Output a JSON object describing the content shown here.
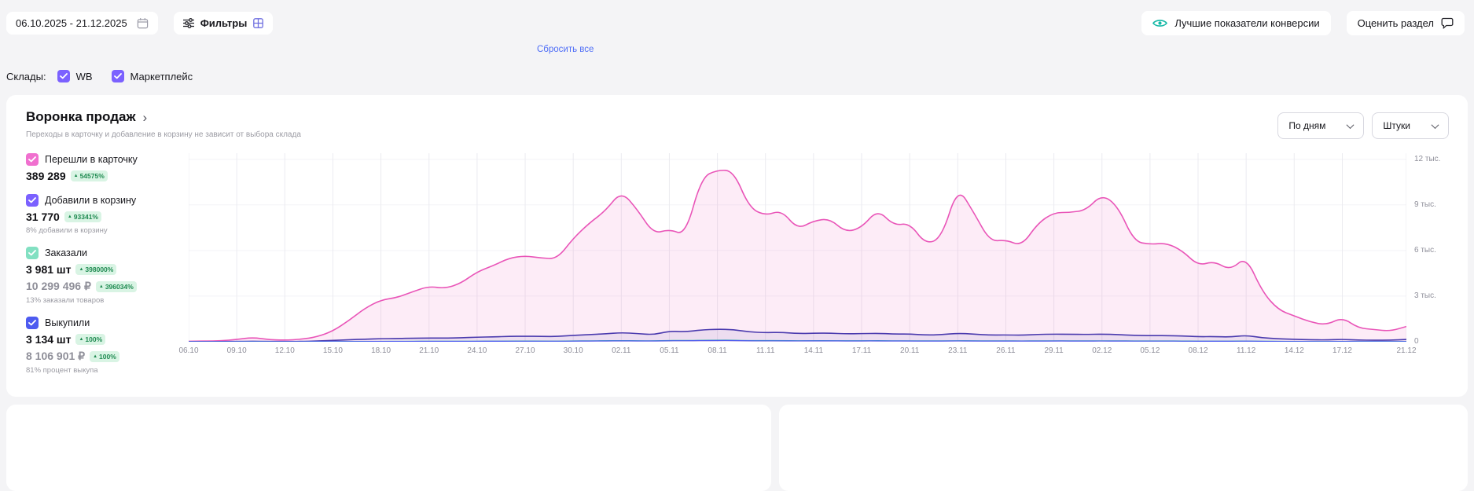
{
  "topbar": {
    "date_range": "06.10.2025 - 21.12.2025",
    "filters_label": "Фильтры",
    "reset_all": "Сбросить все",
    "best_conversion": "Лучшие показатели конверсии",
    "rate_section": "Оценить раздел"
  },
  "warehouses": {
    "label": "Склады:",
    "options": [
      {
        "label": "WB",
        "checked": true
      },
      {
        "label": "Маркетплейс",
        "checked": true
      }
    ]
  },
  "funnel": {
    "title": "Воронка продаж",
    "subtitle": "Переходы в карточку и добавление в корзину не зависит от выбора склада",
    "group_by": "По дням",
    "units": "Штуки",
    "metrics": [
      {
        "label": "Перешли в карточку",
        "value": "389 289",
        "badge": "54575%",
        "color": "#f070cf"
      },
      {
        "label": "Добавили в корзину",
        "value": "31 770",
        "badge": "93341%",
        "note": "8% добавили в корзину",
        "color": "#7b61ff"
      },
      {
        "label": "Заказали",
        "value": "3 981 шт",
        "badge": "398000%",
        "value2": "10 299 496 ₽",
        "badge2": "396034%",
        "note": "13% заказали товаров",
        "color": "#82e0c2"
      },
      {
        "label": "Выкупили",
        "value": "3 134 шт",
        "badge": "100%",
        "value2": "8 106 901 ₽",
        "badge2": "100%",
        "note": "81% процент выкупа",
        "color": "#4d5bf0"
      }
    ]
  },
  "colors": {
    "accent_purple": "#7b61ff",
    "link_blue": "#4f6ef7",
    "badge_green_bg": "#d9f4e4",
    "badge_green_text": "#1e8a50",
    "pink_line": "#e955b8",
    "dark_purple_line": "#4a3aae",
    "teal_icon": "#14b8a6"
  },
  "chart_data": {
    "type": "area",
    "title": "Воронка продаж",
    "legend_position": "left",
    "grid": true,
    "ylim": [
      0,
      12400
    ],
    "y_ticks": [
      0,
      3000,
      6000,
      9000,
      12000
    ],
    "y_tick_labels": [
      "0",
      "3 тыс.",
      "6 тыс.",
      "9 тыс.",
      "12 тыс."
    ],
    "x_labels": [
      "06.10",
      "09.10",
      "12.10",
      "15.10",
      "18.10",
      "21.10",
      "24.10",
      "27.10",
      "30.10",
      "02.11",
      "05.11",
      "08.11",
      "11.11",
      "14.11",
      "17.11",
      "20.11",
      "23.11",
      "26.11",
      "29.11",
      "02.12",
      "05.12",
      "08.12",
      "11.12",
      "14.12",
      "17.12",
      "21.12"
    ],
    "tick_days": [
      0,
      3,
      6,
      9,
      12,
      15,
      18,
      21,
      24,
      27,
      30,
      33,
      36,
      39,
      42,
      45,
      48,
      51,
      54,
      57,
      60,
      63,
      66,
      69,
      72,
      76
    ],
    "series": [
      {
        "name": "Перешли в карточку",
        "color": "#e955b8",
        "fill": "rgba(238,97,190,0.12)",
        "width": 1.6,
        "values": [
          30,
          40,
          60,
          150,
          280,
          140,
          100,
          160,
          320,
          700,
          1400,
          2200,
          2750,
          2900,
          3300,
          3650,
          3500,
          3850,
          4600,
          5000,
          5500,
          5650,
          5500,
          5450,
          6800,
          7800,
          8600,
          9900,
          8700,
          7100,
          7400,
          7000,
          10800,
          11300,
          11250,
          8800,
          8300,
          8650,
          7400,
          7950,
          8100,
          7200,
          7500,
          8700,
          7650,
          7800,
          6400,
          6850,
          10200,
          8500,
          6600,
          6700,
          6300,
          7800,
          8500,
          8500,
          8650,
          9700,
          8900,
          6600,
          6400,
          6500,
          6000,
          5000,
          5300,
          4700,
          5600,
          3300,
          2100,
          1700,
          1300,
          1100,
          1600,
          900,
          800,
          700,
          1000
        ]
      },
      {
        "name": "Добавили в корзину",
        "color": "#4a3aae",
        "fill": "rgba(94,85,190,0.10)",
        "width": 1.6,
        "values": [
          5,
          5,
          10,
          20,
          30,
          20,
          15,
          20,
          40,
          90,
          130,
          170,
          200,
          210,
          230,
          250,
          240,
          260,
          300,
          320,
          350,
          360,
          350,
          340,
          420,
          470,
          520,
          600,
          540,
          460,
          700,
          650,
          780,
          820,
          800,
          640,
          600,
          620,
          540,
          560,
          570,
          520,
          530,
          560,
          500,
          510,
          440,
          460,
          560,
          500,
          440,
          450,
          430,
          480,
          500,
          490,
          480,
          500,
          470,
          420,
          400,
          410,
          380,
          330,
          340,
          310,
          420,
          260,
          190,
          160,
          130,
          120,
          160,
          110,
          100,
          100,
          150
        ]
      },
      {
        "name": "Заказали",
        "color": "#2fbf9a",
        "fill": "none",
        "width": 1.2,
        "values": [
          1,
          1,
          1,
          3,
          4,
          3,
          2,
          3,
          5,
          11,
          16,
          21,
          25,
          26,
          29,
          31,
          30,
          33,
          38,
          40,
          44,
          45,
          44,
          43,
          53,
          59,
          65,
          75,
          68,
          58,
          88,
          81,
          98,
          103,
          100,
          80,
          75,
          78,
          68,
          70,
          71,
          65,
          66,
          70,
          63,
          64,
          55,
          58,
          70,
          63,
          55,
          56,
          54,
          60,
          63,
          61,
          60,
          63,
          59,
          53,
          50,
          51,
          48,
          41,
          43,
          39,
          53,
          33,
          24,
          20,
          16,
          15,
          20,
          14,
          13,
          13,
          19
        ]
      },
      {
        "name": "Выкупили",
        "color": "#4d5bf0",
        "fill": "none",
        "width": 1.2,
        "values": [
          1,
          1,
          1,
          2,
          3,
          2,
          2,
          2,
          4,
          9,
          13,
          17,
          20,
          21,
          23,
          25,
          24,
          26,
          30,
          32,
          35,
          36,
          35,
          34,
          42,
          47,
          52,
          60,
          54,
          46,
          70,
          65,
          78,
          82,
          80,
          64,
          60,
          62,
          54,
          56,
          57,
          52,
          53,
          56,
          50,
          51,
          44,
          46,
          56,
          50,
          44,
          45,
          43,
          48,
          50,
          49,
          48,
          50,
          47,
          42,
          40,
          41,
          38,
          33,
          34,
          31,
          42,
          26,
          19,
          16,
          13,
          12,
          16,
          11,
          10,
          10,
          15
        ]
      }
    ]
  }
}
